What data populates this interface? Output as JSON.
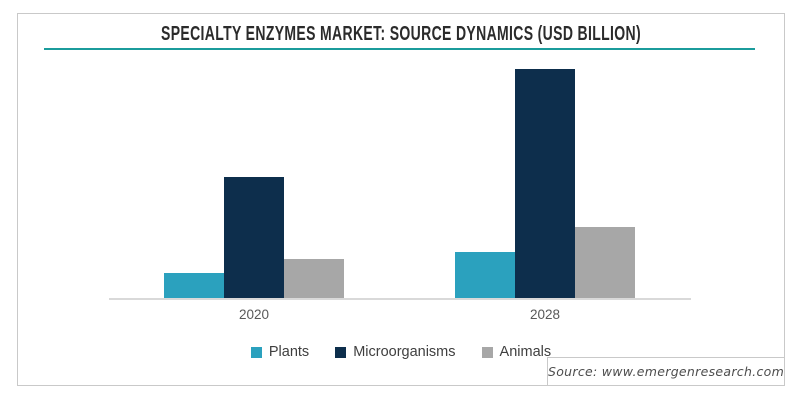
{
  "header": {
    "title": "SPECIALTY ENZYMES MARKET: SOURCE DYNAMICS (USD BILLION)"
  },
  "chart_data": {
    "type": "bar",
    "title": "SPECIALTY ENZYMES MARKET: SOURCE DYNAMICS (USD BILLION)",
    "unit": "USD Billion",
    "categories": [
      "2020",
      "2028"
    ],
    "series": [
      {
        "name": "Plants",
        "color": "#2BA1BE",
        "values": [
          0.55,
          1.0
        ]
      },
      {
        "name": "Microorganisms",
        "color": "#0D2E4C",
        "values": [
          2.65,
          5.0
        ]
      },
      {
        "name": "Animals",
        "color": "#A7A7A7",
        "values": [
          0.85,
          1.55
        ]
      }
    ],
    "ylim": [
      0,
      5.2
    ],
    "y_axis": "hidden",
    "gridlines": false,
    "legend_position": "bottom"
  },
  "legend": {
    "items": [
      "Plants",
      "Microorganisms",
      "Animals"
    ]
  },
  "source": {
    "text": "Source: www.emergenresearch.com"
  },
  "colors": {
    "accent_rule": "#1B9C9C",
    "card_border": "#C9C9C9",
    "axis_line": "#D9D9D9",
    "title_text": "#2B2B2B",
    "category_label": "#595959",
    "legend_text": "#3F3F3F",
    "source_text": "#4D4D4D"
  }
}
